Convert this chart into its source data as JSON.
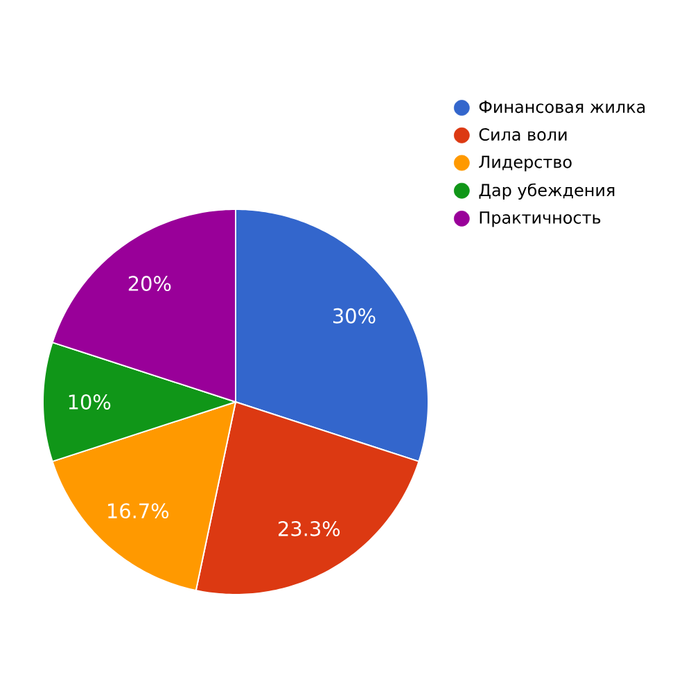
{
  "chart_data": {
    "type": "pie",
    "categories": [
      "Финансовая жилка",
      "Сила воли",
      "Лидерство",
      "Дар убеждения",
      "Практичность"
    ],
    "values": [
      30,
      23.3,
      16.7,
      10,
      20
    ],
    "colors": [
      "#3366cc",
      "#dc3912",
      "#ff9900",
      "#109618",
      "#990099"
    ],
    "value_labels": [
      "30%",
      "23.3%",
      "16.7%",
      "10%",
      "20%"
    ],
    "legend": "top right"
  }
}
